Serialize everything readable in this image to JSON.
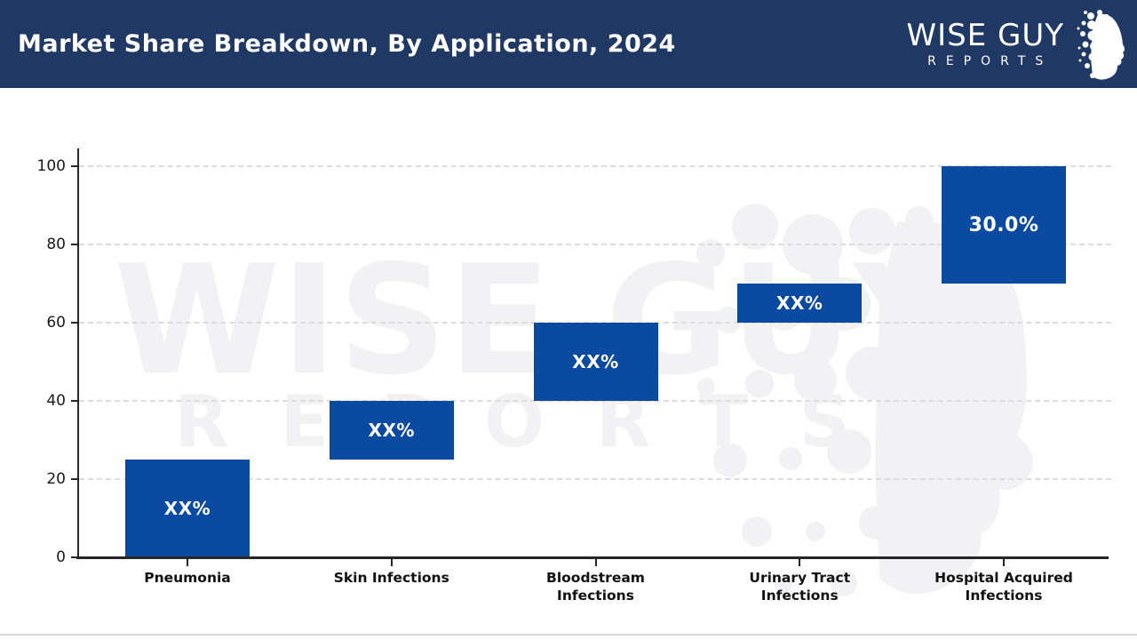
{
  "header": {
    "title": "Market Share Breakdown, By Application, 2024",
    "bg_color": "#1f3864",
    "logo": {
      "line1": "WISE GUY",
      "line2": "REPORTS"
    }
  },
  "watermark": {
    "line1": "WISE GUY",
    "line2": "REPORTS"
  },
  "chart_data": {
    "type": "bar",
    "subtype": "waterfall",
    "title": "Market Share Breakdown, By Application, 2024",
    "categories": [
      "Pneumonia",
      "Skin Infections",
      "Bloodstream\nInfections",
      "Urinary Tract\nInfections",
      "Hospital Acquired\nInfections"
    ],
    "segments": [
      {
        "category": "Pneumonia",
        "start": 0,
        "end": 25,
        "value": 25,
        "label": "XX%"
      },
      {
        "category": "Skin Infections",
        "start": 25,
        "end": 40,
        "value": 15,
        "label": "XX%"
      },
      {
        "category": "Bloodstream Infections",
        "start": 40,
        "end": 60,
        "value": 20,
        "label": "XX%"
      },
      {
        "category": "Urinary Tract Infections",
        "start": 60,
        "end": 70,
        "value": 10,
        "label": "XX%"
      },
      {
        "category": "Hospital Acquired Infections",
        "start": 70,
        "end": 100,
        "value": 30,
        "label": "30.0%"
      }
    ],
    "yticks": [
      0,
      20,
      40,
      60,
      80,
      100
    ],
    "ylim": [
      0,
      107
    ],
    "xlabel": "",
    "ylabel": "",
    "bar_color": "#0a4aa0",
    "grid": "horizontal dashed",
    "legend": "none"
  }
}
